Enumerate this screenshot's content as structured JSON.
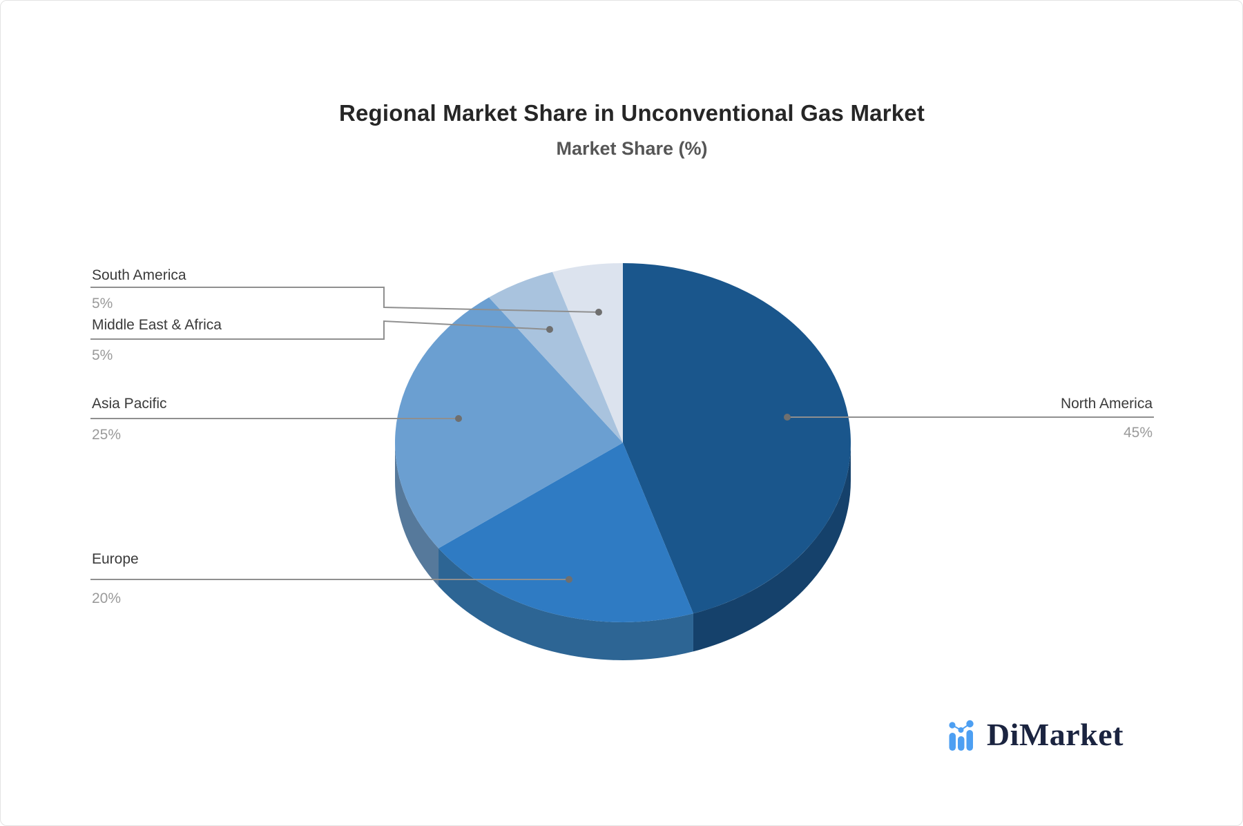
{
  "title": "Regional Market Share in Unconventional Gas Market",
  "subtitle": "Market Share (%)",
  "watermark": {
    "brand": "DiMarket"
  },
  "chart_data": {
    "type": "pie",
    "style": "3d",
    "title": "Regional Market Share in Unconventional Gas Market",
    "subtitle": "Market Share (%)",
    "unit": "%",
    "start_angle_deg": 0,
    "direction": "clockwise",
    "legend_position": "callout-labels",
    "slices": [
      {
        "label": "North America",
        "value": 45,
        "display": "45%",
        "color": "#1A568C",
        "side_color": "#15416B"
      },
      {
        "label": "Europe",
        "value": 20,
        "display": "20%",
        "color": "#2F7BC3",
        "side_color": "#2D6594"
      },
      {
        "label": "Asia Pacific",
        "value": 25,
        "display": "25%",
        "color": "#6B9FD1",
        "side_color": "#56799B"
      },
      {
        "label": "Middle East & Africa",
        "value": 5,
        "display": "5%",
        "color": "#A9C3DE",
        "side_color": "#8FA9C4"
      },
      {
        "label": "South America",
        "value": 5,
        "display": "5%",
        "color": "#DCE3EE",
        "side_color": "#C3CCDB"
      }
    ],
    "colors": {
      "connector": "#8F8F8F",
      "dot": "#6F6F6F",
      "label_text": "#3A3A3A",
      "value_text": "#9A9A9A"
    }
  }
}
